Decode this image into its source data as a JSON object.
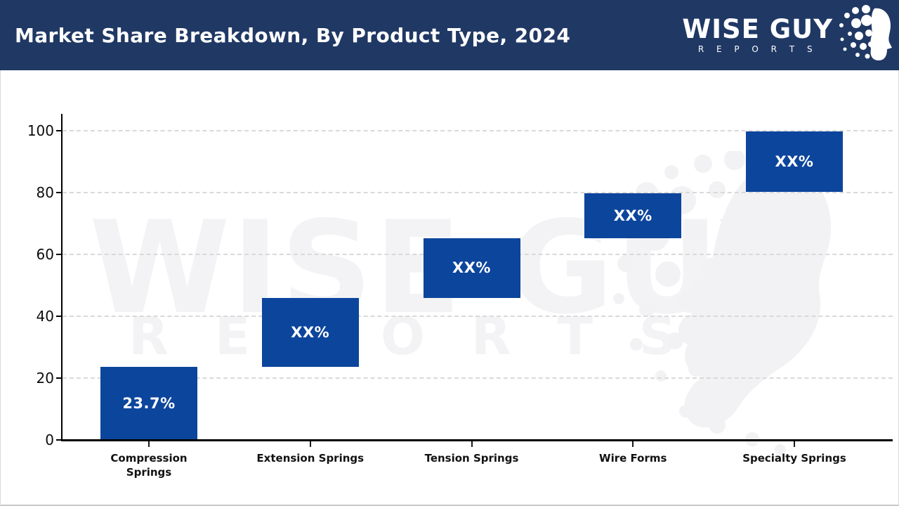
{
  "header": {
    "title": "Market Share Breakdown, By Product Type, 2024",
    "logo": {
      "line1": "WISE GUY",
      "line2": "R E P O R T S"
    }
  },
  "watermark": {
    "line1": "WISE GUY",
    "line2": "R E P O R T S"
  },
  "colors": {
    "header_bg": "#203864",
    "bar_fill": "#0c459c",
    "bar_label": "#ffffff",
    "grid": "#d9d9d9",
    "axis": "#000000",
    "watermark": "#f3f3f5"
  },
  "chart_data": {
    "type": "bar",
    "subtype": "waterfall-floating-bars",
    "title": "Market Share Breakdown, By Product Type, 2024",
    "xlabel": "",
    "ylabel": "",
    "ylim": [
      0,
      100
    ],
    "yticks": [
      0,
      20,
      40,
      60,
      80,
      100
    ],
    "grid": "horizontal-dashed",
    "legend": "none",
    "categories": [
      "Compression Springs",
      "Extension Springs",
      "Tension Springs",
      "Wire Forms",
      "Specialty Springs"
    ],
    "bars": [
      {
        "category": "Compression\nSprings",
        "start": 0,
        "end": 23.7,
        "label": "23.7%"
      },
      {
        "category": "Extension Springs",
        "start": 23.7,
        "end": 46.0,
        "label": "XX%"
      },
      {
        "category": "Tension Springs",
        "start": 46.0,
        "end": 65.2,
        "label": "XX%"
      },
      {
        "category": "Wire Forms",
        "start": 65.3,
        "end": 79.8,
        "label": "XX%"
      },
      {
        "category": "Specialty Springs",
        "start": 80.2,
        "end": 99.8,
        "label": "XX%"
      }
    ]
  }
}
